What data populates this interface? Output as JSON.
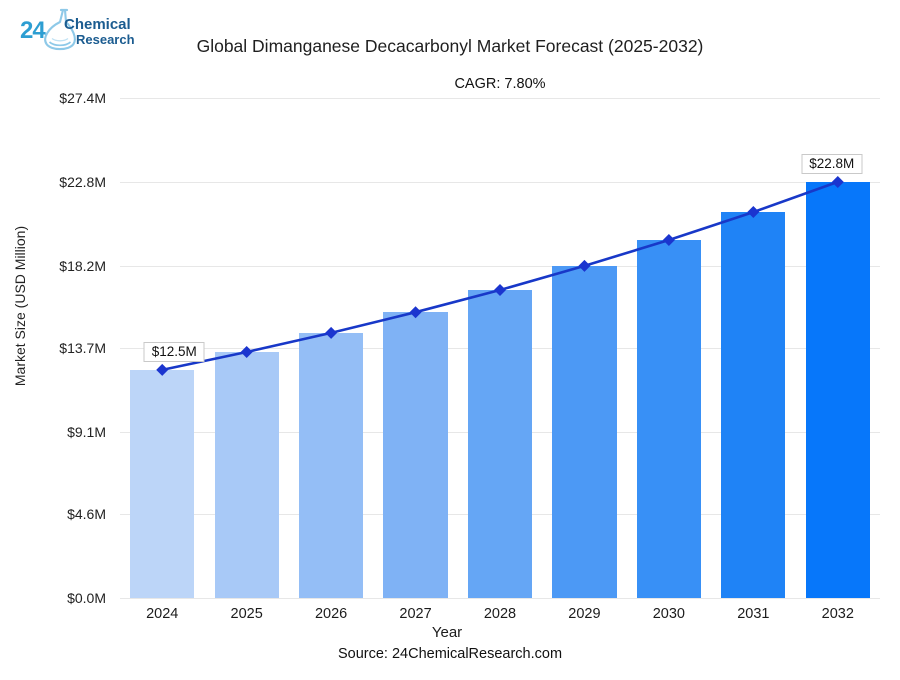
{
  "logo": {
    "number": "24",
    "word1": "Chemical",
    "word2": "Research",
    "accent_color": "#2d9ed2",
    "text_color": "#1b5c90",
    "flask_color": "#8ec9e8"
  },
  "chart_data": {
    "type": "bar",
    "overlay": "line",
    "title": "Global Dimanganese Decacarbonyl Market Forecast (2025-2032)",
    "subtitle": "CAGR: 7.80%",
    "xlabel": "Year",
    "ylabel": "Market Size (USD Million)",
    "categories": [
      "2024",
      "2025",
      "2026",
      "2027",
      "2028",
      "2029",
      "2030",
      "2031",
      "2032"
    ],
    "values": [
      12.5,
      13.48,
      14.53,
      15.66,
      16.88,
      18.2,
      19.62,
      21.15,
      22.8
    ],
    "line_values": [
      12.5,
      13.48,
      14.53,
      15.66,
      16.88,
      18.2,
      19.62,
      21.15,
      22.8
    ],
    "ylim": [
      0,
      27.4
    ],
    "yticks": [
      {
        "value": 27.4,
        "label": "$27.4M"
      },
      {
        "value": 22.8,
        "label": "$22.8M"
      },
      {
        "value": 18.2,
        "label": "$18.2M"
      },
      {
        "value": 13.7,
        "label": "$13.7M"
      },
      {
        "value": 9.1,
        "label": "$9.1M"
      },
      {
        "value": 4.6,
        "label": "$4.6M"
      },
      {
        "value": 0,
        "label": "$0.0M"
      }
    ],
    "grid_on": true,
    "legend_position": "none",
    "bar_colors": [
      "#bcd5f8",
      "#a8c9f7",
      "#94bef6",
      "#7fb2f5",
      "#65a6f5",
      "#4c99f5",
      "#3890f6",
      "#1f83f6",
      "#0777fa"
    ],
    "line_color": "#1838c8",
    "marker_color": "#1b35cf",
    "grid_color": "#e7e7e7",
    "annotations": [
      {
        "index": 0,
        "label": "$12.5M",
        "dx": 12
      },
      {
        "index": 8,
        "label": "$22.8M",
        "dx": -6
      }
    ]
  },
  "footer": {
    "source": "Source: 24ChemicalResearch.com"
  }
}
